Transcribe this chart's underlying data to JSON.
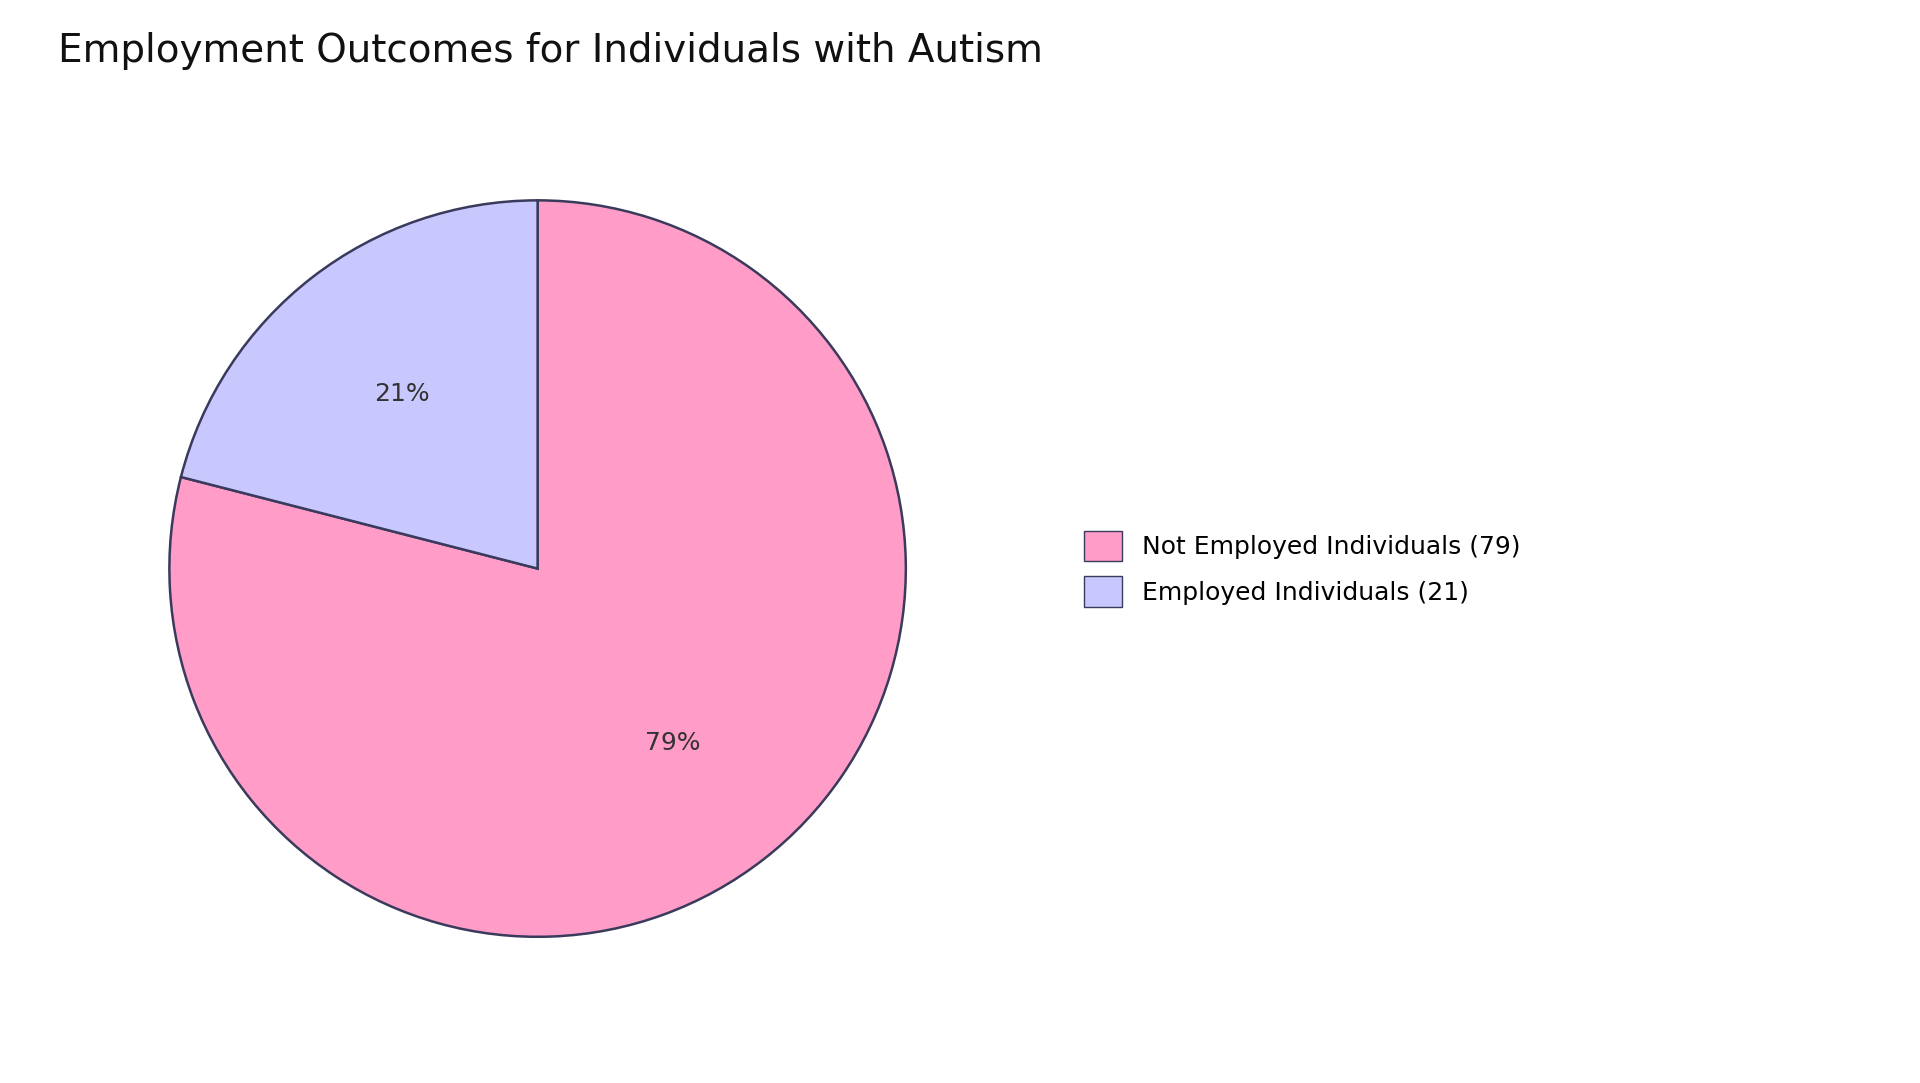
{
  "title": "Employment Outcomes for Individuals with Autism",
  "slices": [
    79,
    21
  ],
  "labels": [
    "Not Employed Individuals (79)",
    "Employed Individuals (21)"
  ],
  "colors": [
    "#FF9DC8",
    "#C8C8FF"
  ],
  "edge_color": "#3A3A5C",
  "autopct_fontsize": 18,
  "title_fontsize": 28,
  "legend_fontsize": 18,
  "background_color": "#FFFFFF",
  "startangle": 90,
  "text_color": "#333333"
}
